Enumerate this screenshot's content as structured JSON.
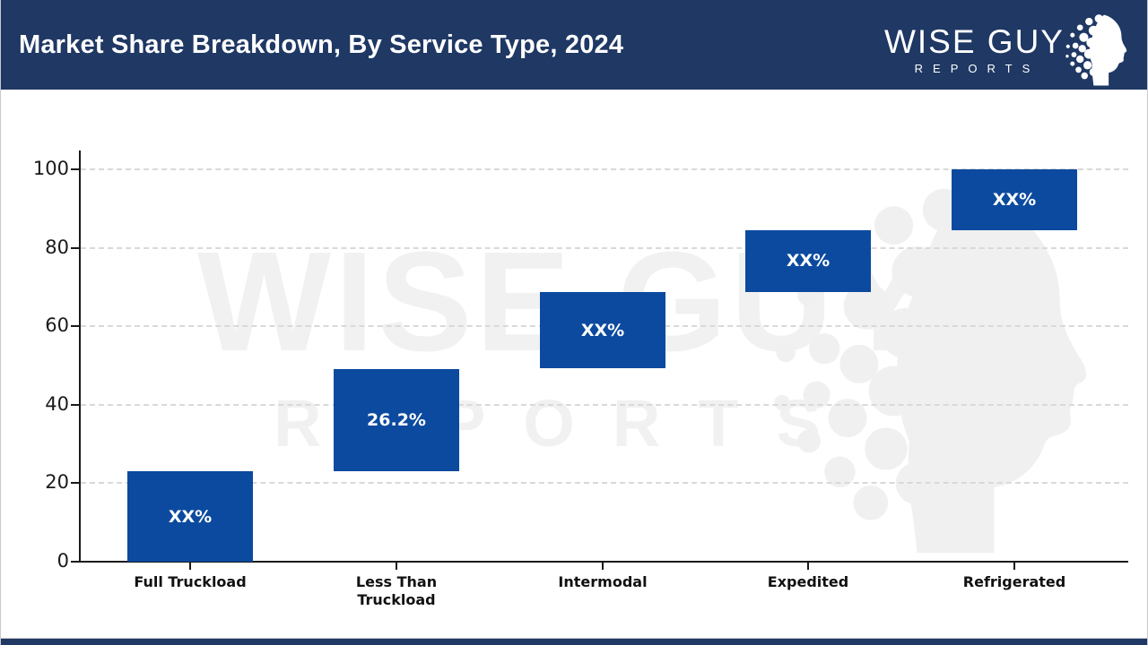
{
  "header": {
    "title": "Market Share Breakdown, By Service Type, 2024",
    "logo_line1": "WISE GUY",
    "logo_line2": "REPORTS",
    "bg_color": "#1F3864"
  },
  "watermark": {
    "line1": "WISE GUY",
    "line2": "REPORTS"
  },
  "chart_data": {
    "type": "bar",
    "subtype": "waterfall",
    "title": "Market Share Breakdown, By Service Type, 2024",
    "categories": [
      "Full Truckload",
      "Less Than Truckload",
      "Intermodal",
      "Expedited",
      "Refrigerated"
    ],
    "values": [
      23.0,
      26.2,
      19.6,
      15.7,
      15.5
    ],
    "starts": [
      0,
      23.0,
      49.2,
      68.8,
      84.5
    ],
    "bar_labels": [
      "XX%",
      "26.2%",
      "XX%",
      "XX%",
      "XX%"
    ],
    "bar_color": "#0B4A9F",
    "xlabel": "",
    "ylabel": "",
    "yticks": [
      0,
      20,
      40,
      60,
      80,
      100
    ],
    "ylim": [
      0,
      100
    ],
    "grid": "horizontal-dashed",
    "legend": "none",
    "units": "percent"
  }
}
